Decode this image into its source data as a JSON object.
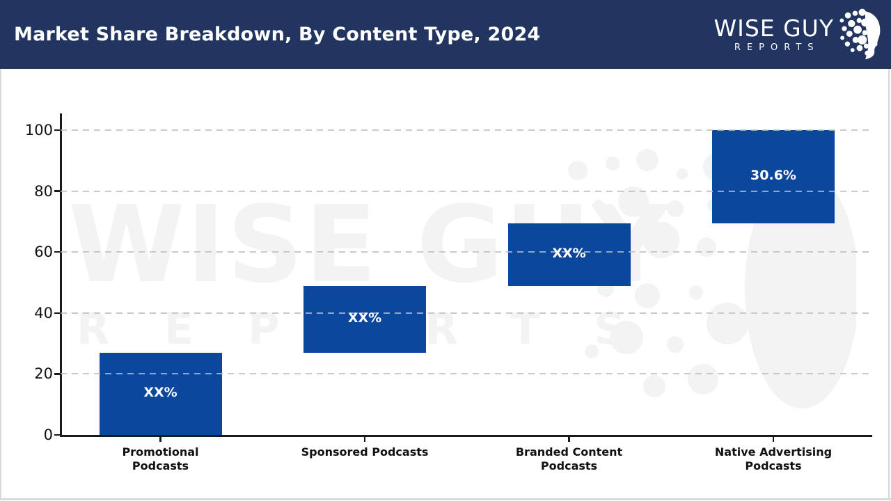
{
  "header": {
    "title": "Market Share Breakdown, By Content Type, 2024",
    "logo": {
      "wordmark": "WISE GUY",
      "subtext": "REPORTS"
    }
  },
  "watermark": {
    "wordmark": "WISE GUY",
    "subtext": "REPORTS"
  },
  "colors": {
    "header_bg": "#213560",
    "bar_blue": "#0B479D",
    "grid": "#BDBDBD",
    "axis": "#1A1A1A",
    "bar_label": "#FFFFFF",
    "watermark": "#F3F3F3",
    "edge_hairline": "#D9D9D9"
  },
  "chart_data": {
    "type": "bar",
    "subtype": "waterfall",
    "title": "Market Share Breakdown, By Content Type, 2024",
    "categories": [
      "Promotional Podcasts",
      "Sponsored Podcasts",
      "Branded Content Podcasts",
      "Native Advertising Podcasts"
    ],
    "category_lines": [
      [
        "Promotional",
        "Podcasts"
      ],
      [
        "Sponsored Podcasts"
      ],
      [
        "Branded Content",
        "Podcasts"
      ],
      [
        "Native Advertising",
        "Podcasts"
      ]
    ],
    "segments": [
      {
        "category": "Promotional Podcasts",
        "start": 0,
        "end": 27.0,
        "label": "XX%"
      },
      {
        "category": "Sponsored Podcasts",
        "start": 27.0,
        "end": 48.9,
        "label": "XX%"
      },
      {
        "category": "Branded Content Podcasts",
        "start": 48.9,
        "end": 69.4,
        "label": "XX%"
      },
      {
        "category": "Native Advertising Podcasts",
        "start": 69.4,
        "end": 100,
        "label": "30.6%"
      }
    ],
    "yticks": [
      0,
      20,
      40,
      60,
      80,
      100
    ],
    "ylim": [
      0,
      105
    ],
    "xlabel": "",
    "ylabel": "",
    "grid": "horizontal-dashed",
    "legend": null
  }
}
